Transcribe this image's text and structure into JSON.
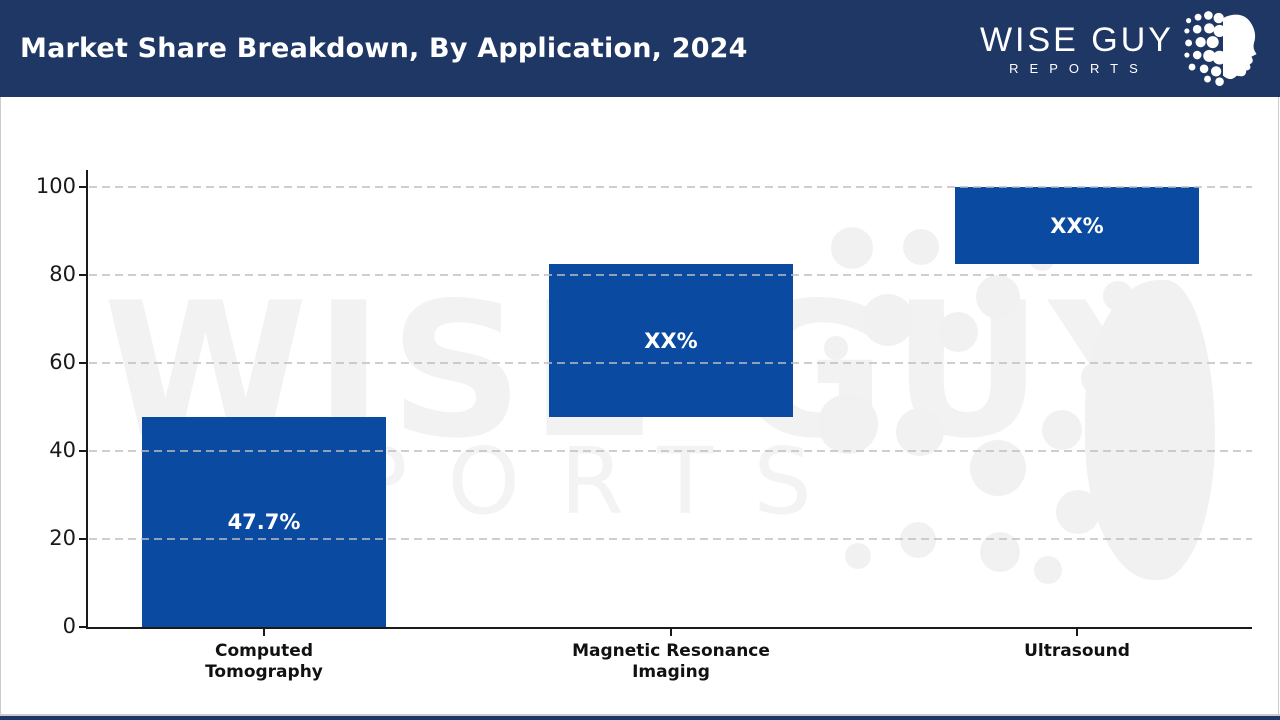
{
  "header": {
    "title": "Market Share Breakdown, By Application, 2024",
    "logo": {
      "line1": "WISE GUY",
      "line2": "REPORTS"
    }
  },
  "watermark": {
    "line1": "WISE GUY",
    "line2": "REPORTS"
  },
  "chart_data": {
    "type": "bar",
    "subtype": "waterfall",
    "title": "Market Share Breakdown, By Application, 2024",
    "categories": [
      [
        "Computed",
        "Tomography"
      ],
      [
        "Magnetic Resonance",
        "Imaging"
      ],
      [
        "Ultrasound"
      ]
    ],
    "segments": [
      {
        "category": "Computed Tomography",
        "start": 0,
        "end": 47.7,
        "label": "47.7%"
      },
      {
        "category": "Magnetic Resonance Imaging",
        "start": 47.7,
        "end": 82.5,
        "label": "XX%"
      },
      {
        "category": "Ultrasound",
        "start": 82.5,
        "end": 100,
        "label": "XX%"
      }
    ],
    "yticks": [
      0,
      20,
      40,
      60,
      80,
      100
    ],
    "ylim": [
      0,
      100
    ],
    "xlabel": "",
    "ylabel": "",
    "legend": "none",
    "grid": "horizontal-dashed-over-bars",
    "colors": {
      "bar": "#0b4aa1",
      "bar_label": "#ffffff",
      "header_bg": "#1f3765",
      "axis": "#1a1a1a",
      "grid": "#d2d2d2",
      "tick_label": "#1a1a1a",
      "watermark": "#f2f2f2"
    }
  }
}
